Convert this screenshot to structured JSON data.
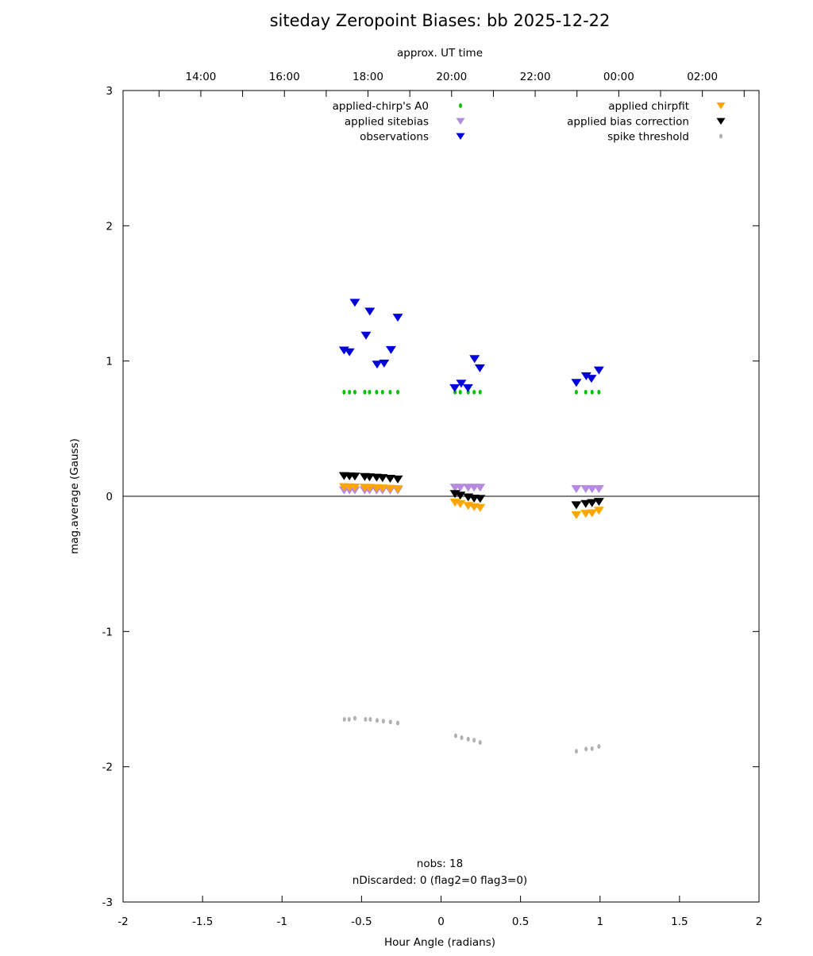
{
  "title": "siteday Zeropoint Biases:  bb  2025-12-22",
  "chart_data": {
    "type": "scatter",
    "title": "siteday Zeropoint Biases:  bb  2025-12-22",
    "top_axis_label": "approx. UT time",
    "xlabel": "Hour Angle (radians)",
    "ylabel": "mag.average (Gauss)",
    "xlim": [
      -2,
      2
    ],
    "ylim": [
      -3,
      3
    ],
    "zero_line": true,
    "grid": false,
    "x_ticks": [
      {
        "v": -2,
        "label": "-2"
      },
      {
        "v": -1.5,
        "label": "-1.5"
      },
      {
        "v": -1,
        "label": "-1"
      },
      {
        "v": -0.5,
        "label": "-0.5"
      },
      {
        "v": 0,
        "label": "0"
      },
      {
        "v": 0.5,
        "label": "0.5"
      },
      {
        "v": 1,
        "label": "1"
      },
      {
        "v": 1.5,
        "label": "1.5"
      },
      {
        "v": 2,
        "label": "2"
      }
    ],
    "y_ticks": [
      {
        "v": -3,
        "label": "-3"
      },
      {
        "v": -2,
        "label": "-2"
      },
      {
        "v": -1,
        "label": "-1"
      },
      {
        "v": 0,
        "label": "0"
      },
      {
        "v": 1,
        "label": "1"
      },
      {
        "v": 2,
        "label": "2"
      },
      {
        "v": 3,
        "label": "3"
      }
    ],
    "top_axis_hour_range": [
      13,
      27
    ],
    "top_axis_minor_hours": [
      13,
      14,
      15,
      16,
      17,
      18,
      19,
      20,
      21,
      22,
      23,
      24,
      25,
      26,
      27
    ],
    "top_axis_labeled_ticks": [
      {
        "hour": 14,
        "label": "14:00"
      },
      {
        "hour": 16,
        "label": "16:00"
      },
      {
        "hour": 18,
        "label": "18:00"
      },
      {
        "hour": 20,
        "label": "20:00"
      },
      {
        "hour": 22,
        "label": "22:00"
      },
      {
        "hour": 24,
        "label": "00:00"
      },
      {
        "hour": 26,
        "label": "02:00"
      }
    ],
    "annotations": [
      "nobs: 18",
      "nDiscarded: 0  (flag2=0  flag3=0)"
    ],
    "legend": {
      "left_column": [
        "applied-chirp's A0",
        "applied sitebias",
        "observations"
      ],
      "right_column": [
        "applied chirpfit",
        "applied bias correction",
        "spike threshold"
      ]
    },
    "series": [
      {
        "name": "applied sitebias",
        "marker": "triangle-down",
        "color": "#b58ae0",
        "points": [
          [
            -0.61,
            0.046
          ],
          [
            -0.576,
            0.046
          ],
          [
            -0.542,
            0.046
          ],
          [
            -0.48,
            0.046
          ],
          [
            -0.45,
            0.046
          ],
          [
            -0.405,
            0.046
          ],
          [
            -0.368,
            0.046
          ],
          [
            -0.32,
            0.046
          ],
          [
            -0.272,
            0.046
          ],
          [
            0.088,
            0.066
          ],
          [
            0.121,
            0.066
          ],
          [
            0.171,
            0.066
          ],
          [
            0.208,
            0.066
          ],
          [
            0.246,
            0.066
          ],
          [
            0.851,
            0.056
          ],
          [
            0.91,
            0.056
          ],
          [
            0.95,
            0.056
          ],
          [
            0.993,
            0.056
          ]
        ]
      },
      {
        "name": "applied chirpfit",
        "marker": "triangle-down",
        "color": "#ffa500",
        "points": [
          [
            -0.61,
            0.07
          ],
          [
            -0.576,
            0.069
          ],
          [
            -0.542,
            0.068
          ],
          [
            -0.48,
            0.066
          ],
          [
            -0.45,
            0.065
          ],
          [
            -0.405,
            0.063
          ],
          [
            -0.368,
            0.061
          ],
          [
            -0.32,
            0.058
          ],
          [
            -0.272,
            0.055
          ],
          [
            0.088,
            -0.045
          ],
          [
            0.121,
            -0.055
          ],
          [
            0.171,
            -0.069
          ],
          [
            0.208,
            -0.078
          ],
          [
            0.246,
            -0.084
          ],
          [
            0.851,
            -0.137
          ],
          [
            0.91,
            -0.127
          ],
          [
            0.95,
            -0.123
          ],
          [
            0.993,
            -0.104
          ]
        ]
      },
      {
        "name": "applied bias correction",
        "marker": "triangle-down",
        "color": "#000000",
        "points": [
          [
            -0.61,
            0.152
          ],
          [
            -0.576,
            0.15
          ],
          [
            -0.542,
            0.148
          ],
          [
            -0.48,
            0.145
          ],
          [
            -0.45,
            0.143
          ],
          [
            -0.405,
            0.14
          ],
          [
            -0.368,
            0.137
          ],
          [
            -0.32,
            0.132
          ],
          [
            -0.272,
            0.127
          ],
          [
            0.088,
            0.019
          ],
          [
            0.121,
            0.007
          ],
          [
            0.171,
            -0.006
          ],
          [
            0.208,
            -0.015
          ],
          [
            0.246,
            -0.017
          ],
          [
            0.851,
            -0.064
          ],
          [
            0.91,
            -0.054
          ],
          [
            0.95,
            -0.048
          ],
          [
            0.993,
            -0.039
          ]
        ]
      },
      {
        "name": "applied-chirp's A0",
        "marker": "dot",
        "color": "#00c400",
        "points": [
          [
            -0.61,
            0.77
          ],
          [
            -0.576,
            0.77
          ],
          [
            -0.542,
            0.77
          ],
          [
            -0.48,
            0.77
          ],
          [
            -0.45,
            0.77
          ],
          [
            -0.405,
            0.77
          ],
          [
            -0.368,
            0.77
          ],
          [
            -0.32,
            0.77
          ],
          [
            -0.272,
            0.77
          ],
          [
            0.088,
            0.77
          ],
          [
            0.121,
            0.77
          ],
          [
            0.171,
            0.77
          ],
          [
            0.208,
            0.77
          ],
          [
            0.246,
            0.77
          ],
          [
            0.851,
            0.77
          ],
          [
            0.91,
            0.77
          ],
          [
            0.95,
            0.77
          ],
          [
            0.993,
            0.77
          ]
        ]
      },
      {
        "name": "spike threshold",
        "marker": "dot",
        "color": "#b0b0b0",
        "points": [
          [
            -0.608,
            -1.65
          ],
          [
            -0.578,
            -1.65
          ],
          [
            -0.542,
            -1.642
          ],
          [
            -0.475,
            -1.65
          ],
          [
            -0.445,
            -1.65
          ],
          [
            -0.402,
            -1.657
          ],
          [
            -0.363,
            -1.663
          ],
          [
            -0.318,
            -1.669
          ],
          [
            -0.272,
            -1.677
          ],
          [
            0.092,
            -1.771
          ],
          [
            0.13,
            -1.785
          ],
          [
            0.171,
            -1.796
          ],
          [
            0.208,
            -1.804
          ],
          [
            0.246,
            -1.82
          ],
          [
            0.851,
            -1.885
          ],
          [
            0.912,
            -1.869
          ],
          [
            0.95,
            -1.866
          ],
          [
            0.993,
            -1.85
          ]
        ]
      },
      {
        "name": "observations",
        "marker": "triangle-down",
        "color": "#0000dd",
        "points": [
          [
            -0.542,
            1.433
          ],
          [
            -0.448,
            1.368
          ],
          [
            -0.272,
            1.323
          ],
          [
            -0.472,
            1.19
          ],
          [
            -0.61,
            1.08
          ],
          [
            -0.576,
            1.067
          ],
          [
            -0.315,
            1.084
          ],
          [
            -0.402,
            0.976
          ],
          [
            -0.358,
            0.984
          ],
          [
            0.211,
            1.017
          ],
          [
            0.244,
            0.949
          ],
          [
            0.127,
            0.835
          ],
          [
            0.086,
            0.802
          ],
          [
            0.169,
            0.802
          ],
          [
            0.993,
            0.933
          ],
          [
            0.913,
            0.89
          ],
          [
            0.946,
            0.871
          ],
          [
            0.851,
            0.841
          ]
        ]
      }
    ]
  }
}
